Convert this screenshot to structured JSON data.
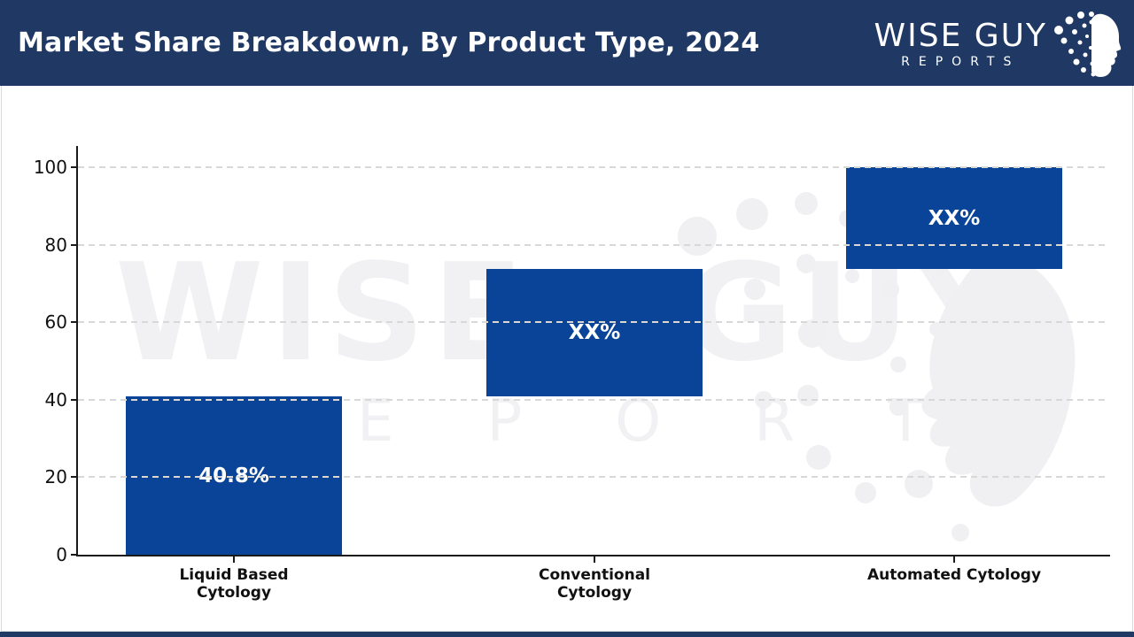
{
  "header": {
    "title": "Market Share Breakdown, By Product Type, 2024",
    "logo": {
      "name_line": "WISE GUY",
      "reports_line": "REPORTS"
    }
  },
  "watermark": {
    "name_line": "WISE GUY",
    "reports_line": "R E P O R T S"
  },
  "chart_data": {
    "type": "bar",
    "variant": "waterfall",
    "title": "Market Share Breakdown, By Product Type, 2024",
    "xlabel": "",
    "ylabel": "",
    "ylim": [
      0,
      100
    ],
    "y_ticks": [
      0,
      20,
      40,
      60,
      80,
      100
    ],
    "grid": {
      "horizontal": true,
      "style": "dashed",
      "color": "#d8d8d8",
      "drawn_over_bars": true
    },
    "legend": "none",
    "bar_color": "#0a4499",
    "value_label_color": "#ffffff",
    "categories": [
      "Liquid Based Cytology",
      "Conventional Cytology",
      "Automated Cytology"
    ],
    "category_lines": [
      [
        "Liquid Based",
        "Cytology"
      ],
      [
        "Conventional",
        "Cytology"
      ],
      [
        "Automated Cytology"
      ]
    ],
    "bars": [
      {
        "category": "Liquid Based Cytology",
        "start": 0,
        "end": 40.8,
        "label": "40.8%"
      },
      {
        "category": "Conventional Cytology",
        "start": 40.8,
        "end": 73.7,
        "label": "XX%"
      },
      {
        "category": "Automated Cytology",
        "start": 73.7,
        "end": 100,
        "label": "XX%"
      }
    ]
  },
  "colors": {
    "header_bg": "#1f3864",
    "footer_bg": "#1f3864",
    "bar": "#0a4499",
    "watermark": "#f1f1f4",
    "grid": "#d8d8d8",
    "axis": "#1a1a1a"
  }
}
